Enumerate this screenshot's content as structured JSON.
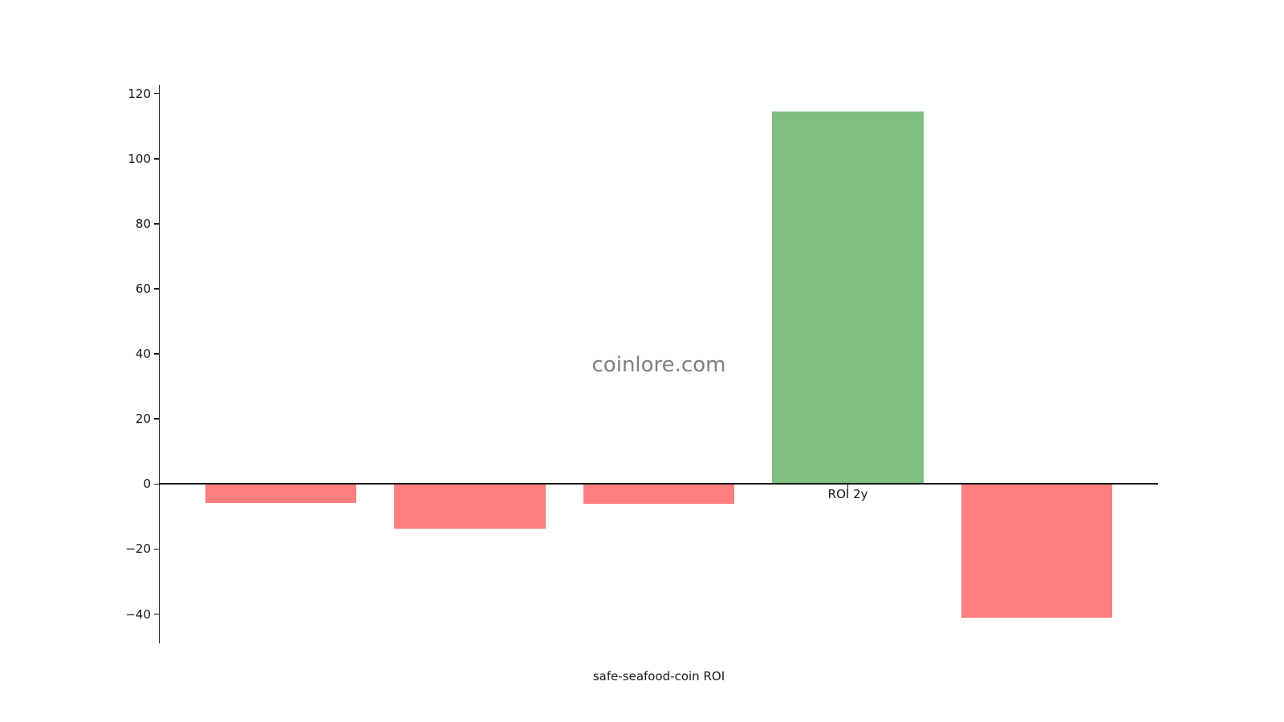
{
  "watermark": {
    "text": "coinlore.com",
    "color": "#7f7f7f"
  },
  "footer": {
    "title": "safe-seafood-coin ROI"
  },
  "axis": {
    "line_color": "#1a1a1a",
    "tick_label_color": "#1a1a1a"
  },
  "colors": {
    "positive_bar": "#7fbf7f",
    "negative_bar": "#ff7f7f"
  },
  "chart_data": {
    "type": "bar",
    "title": "safe-seafood-coin ROI",
    "watermark": "coinlore.com",
    "categories": [
      "",
      "",
      "",
      "ROI 2y",
      ""
    ],
    "values": [
      -5.9,
      -13.8,
      -6.1,
      114.6,
      -41.2
    ],
    "series": [
      {
        "name": "safe-seafood-coin ROI",
        "values": [
          -5.9,
          -13.8,
          -6.1,
          114.6,
          -41.2
        ]
      }
    ],
    "visible_x_tick_labels": [
      "ROI 2y"
    ],
    "yticks": [
      120,
      100,
      80,
      60,
      40,
      20,
      0,
      -20,
      -40
    ],
    "ylim": [
      -49.0,
      122.4
    ],
    "xlabel": "",
    "ylabel": "",
    "grid": false,
    "legend": false,
    "bar_width_fraction": 0.8,
    "baseline": 0
  }
}
